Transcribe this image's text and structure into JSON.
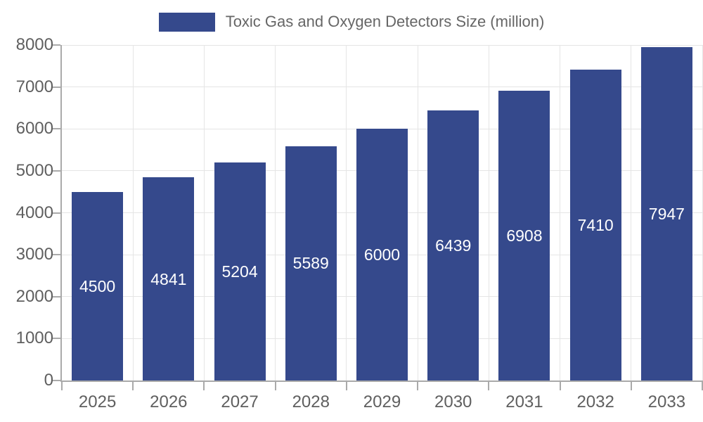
{
  "chart_data": {
    "type": "bar",
    "title": "Toxic Gas and Oxygen Detectors Size (million)",
    "categories": [
      "2025",
      "2026",
      "2027",
      "2028",
      "2029",
      "2030",
      "2031",
      "2032",
      "2033"
    ],
    "values": [
      4500,
      4841,
      5204,
      5589,
      6000,
      6439,
      6908,
      7410,
      7947
    ],
    "bar_labels": [
      "4500",
      "4841",
      "5204",
      "5589",
      "6000",
      "6439",
      "6908",
      "7410",
      "7947"
    ],
    "xlabel": "",
    "ylabel": "",
    "ylim": [
      0,
      8000
    ],
    "yticks": [
      0,
      1000,
      2000,
      3000,
      4000,
      5000,
      6000,
      7000,
      8000
    ],
    "grid": true,
    "legend_position": "top-center",
    "colors": {
      "bar": "#35498C",
      "bar_label_text": "#ffffff",
      "grid": "#e5e5e5",
      "axis": "#aaaaaa",
      "tick_text": "#5f5f5f",
      "legend_text": "#666666",
      "background": "#ffffff"
    }
  }
}
